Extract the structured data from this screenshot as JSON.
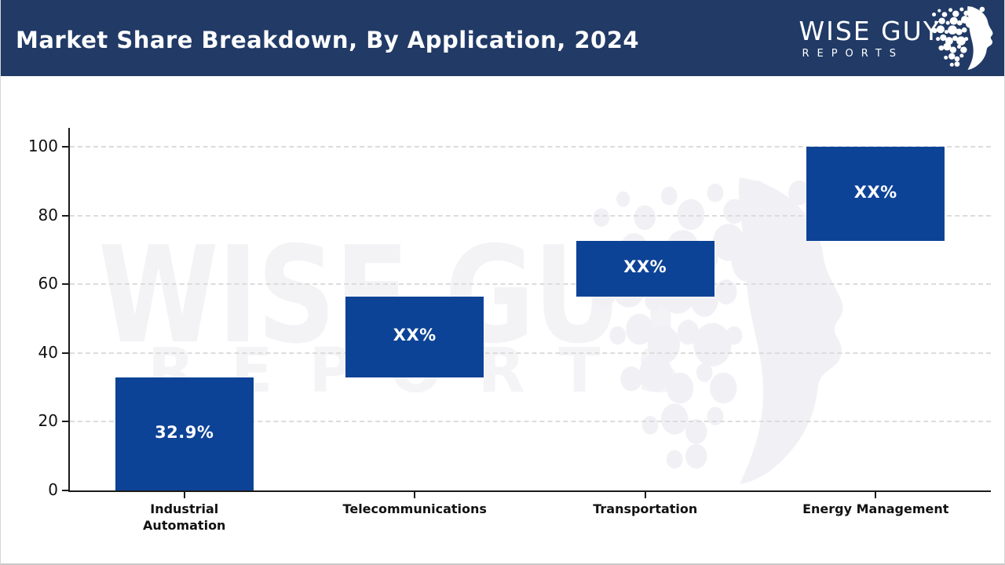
{
  "header": {
    "title": "Market Share Breakdown, By Application, 2024",
    "background_color": "#213a66",
    "logo": {
      "line1": "WISE GUY",
      "line2": "REPORTS"
    }
  },
  "watermark": {
    "line1": "WISE GUY",
    "line2": "REPORTS"
  },
  "chart_data": {
    "type": "bar",
    "subtype": "waterfall",
    "title": "Market Share Breakdown, By Application, 2024",
    "xlabel": "",
    "ylabel": "",
    "categories": [
      "Industrial\nAutomation",
      "Telecommunications",
      "Transportation",
      "Energy Management"
    ],
    "series": [
      {
        "name": "Market Share (%)",
        "segments": [
          {
            "category": "Industrial Automation",
            "start": 0,
            "end": 32.9,
            "label": "32.9%"
          },
          {
            "category": "Telecommunications",
            "start": 32.9,
            "end": 56.5,
            "label": "XX%"
          },
          {
            "category": "Transportation",
            "start": 56.5,
            "end": 72.5,
            "label": "XX%"
          },
          {
            "category": "Energy Management",
            "start": 72.5,
            "end": 100,
            "label": "XX%"
          }
        ]
      }
    ],
    "yticks": [
      0,
      20,
      40,
      60,
      80,
      100
    ],
    "ylim": [
      0,
      105
    ],
    "grid": "horizontal-dashed",
    "legend": "none",
    "bar_color": "#0d4396",
    "bar_label_color": "#ffffff",
    "axis_color": "#1a1a1a",
    "gridline_color": "#dcdcdc"
  }
}
